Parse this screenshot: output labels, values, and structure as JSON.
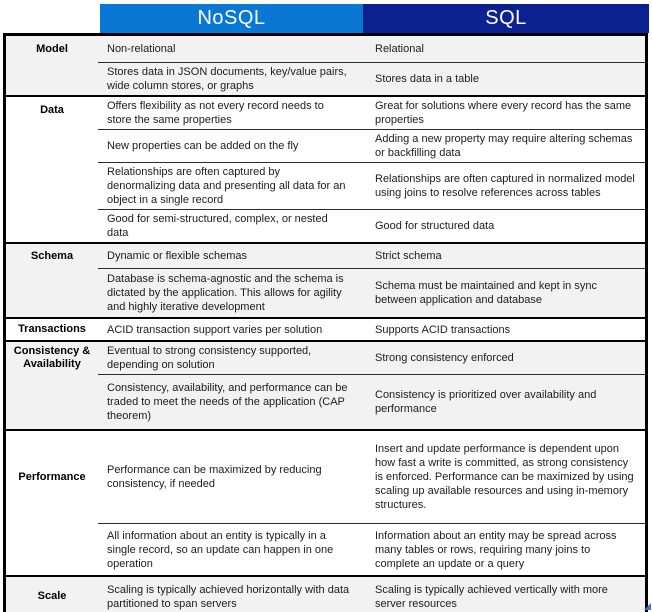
{
  "header": {
    "nosql_label": "NoSQL",
    "sql_label": "SQL"
  },
  "colors": {
    "nosql_header_bg": "#0878d4",
    "sql_header_bg": "#0b2190",
    "shaded_row_bg": "#f2f2f2",
    "body_text": "#1c1c1c",
    "corner_artifact": "#4472c4"
  },
  "sections": [
    {
      "category": "Model",
      "shaded": true,
      "rows": [
        {
          "nosql": "Non-relational",
          "sql": "Relational"
        },
        {
          "nosql": "Stores data in JSON documents, key/value pairs, wide column stores, or graphs",
          "sql": "Stores data in a table"
        }
      ]
    },
    {
      "category": "Data",
      "shaded": false,
      "rows": [
        {
          "nosql": "Offers flexibility as not every record needs to store the same properties",
          "sql": "Great for solutions where every record has the same properties"
        },
        {
          "nosql": "New properties can be added on the fly",
          "sql": "Adding a new property may require altering schemas or backfilling data"
        },
        {
          "nosql": "Relationships are often captured by denormalizing data and presenting all data for an object in a single record",
          "sql": "Relationships are often captured in normalized model using joins to resolve references across tables"
        },
        {
          "nosql": "Good for semi-structured, complex, or nested data",
          "sql": "Good for structured data"
        }
      ]
    },
    {
      "category": "Schema",
      "shaded": true,
      "rows": [
        {
          "nosql": "Dynamic or flexible schemas",
          "sql": "Strict schema"
        },
        {
          "nosql": "Database is schema-agnostic and the schema is dictated by the application. This allows for agility and highly iterative development",
          "sql": "Schema must be maintained and kept in sync between application and database"
        }
      ]
    },
    {
      "category": "Transactions",
      "shaded": false,
      "rows": [
        {
          "nosql": "ACID transaction support varies per solution",
          "sql": "Supports ACID transactions"
        }
      ]
    },
    {
      "category": "Consistency & Availability",
      "shaded": true,
      "rows": [
        {
          "nosql": "Eventual to strong consistency supported, depending on solution",
          "sql": "Strong consistency enforced"
        },
        {
          "nosql": "Consistency, availability, and performance can be traded to meet the needs of the application (CAP theorem)",
          "sql": "Consistency is prioritized over availability and performance"
        }
      ]
    },
    {
      "category": "Performance",
      "shaded": false,
      "rows": [
        {
          "nosql": "Performance can be maximized by reducing consistency, if needed",
          "sql": "Insert and update performance is dependent upon how fast a write is committed, as strong consistency is enforced. Performance can be maximized by using scaling up available resources and using in-memory structures."
        },
        {
          "nosql": "All information about an entity is typically in a single record, so an update can happen in one operation",
          "sql": "Information about an entity may be spread across many tables or rows, requiring many joins to complete an update or a query"
        }
      ]
    },
    {
      "category": "Scale",
      "shaded": true,
      "rows": [
        {
          "nosql": "Scaling is typically achieved horizontally with data partitioned to span servers",
          "sql": "Scaling is typically achieved vertically with more server resources"
        }
      ]
    }
  ]
}
